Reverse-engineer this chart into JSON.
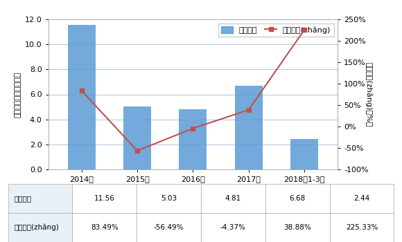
{
  "categories": [
    "2014年",
    "2015年",
    "2016年",
    "2017年",
    "2018年1-3月"
  ],
  "bar_values": [
    11.56,
    5.03,
    4.81,
    6.68,
    2.44
  ],
  "growth_values": [
    83.49,
    -56.49,
    -4.37,
    38.88,
    225.33
  ],
  "bar_color": "#5b9bd5",
  "line_color": "#c0504d",
  "bar_ylabel": "出口金額（百萬美元）",
  "line_ylabel": "同比增長(zhǎng)（%）",
  "ylim_bar": [
    0,
    12.0
  ],
  "ylim_line": [
    -100,
    250
  ],
  "yticks_bar": [
    0.0,
    2.0,
    4.0,
    6.0,
    8.0,
    10.0,
    12.0
  ],
  "yticks_line": [
    -100,
    -50,
    0,
    50,
    100,
    150,
    200,
    250
  ],
  "ytick_labels_line": [
    "-100%",
    "-50%",
    "0%",
    "50%",
    "100%",
    "150%",
    "200%",
    "250%"
  ],
  "legend_bar_label": "出口金額",
  "legend_line_label": "同比增長(zhǎng)",
  "table_row1_label": "出口金額",
  "table_row2_label": "同比增長(zhǎng)",
  "table_row1_values": [
    "11.56",
    "5.03",
    "4.81",
    "6.68",
    "2.44"
  ],
  "table_row2_values": [
    "83.49%",
    "-56.49%",
    "-4.37%",
    "38.88%",
    "225.33%"
  ],
  "grid_color": "#b0c4de",
  "bg_color": "#ffffff",
  "watermark_color": "#d0e4f5"
}
